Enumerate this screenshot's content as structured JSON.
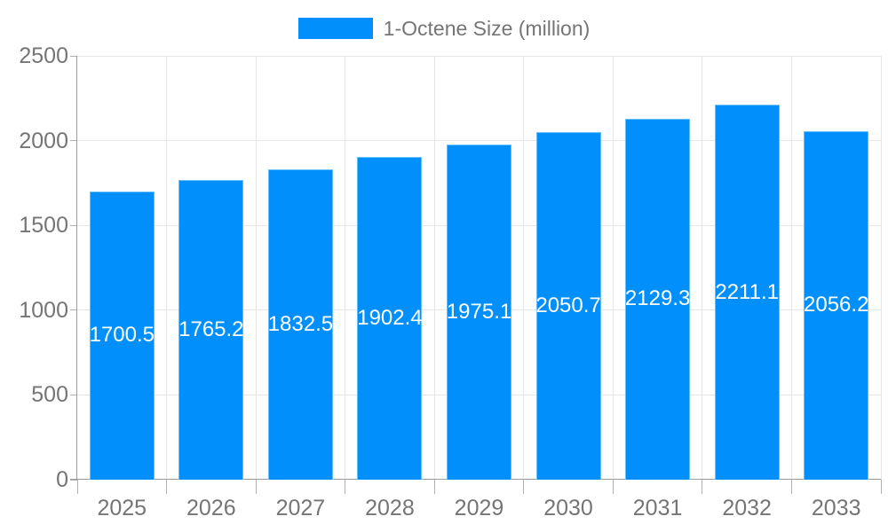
{
  "chart_data": {
    "type": "bar",
    "title": "",
    "categories": [
      "2025",
      "2026",
      "2027",
      "2028",
      "2029",
      "2030",
      "2031",
      "2032",
      "2033"
    ],
    "series": [
      {
        "name": "1-Octene Size (million)",
        "values": [
          1700.5,
          1765.2,
          1832.5,
          1902.4,
          1975.1,
          2050.7,
          2129.3,
          2211.1,
          2056.2
        ]
      }
    ],
    "value_labels": [
      "1700.5",
      "1765.2",
      "1832.5",
      "1902.4",
      "1975.1",
      "2050.7",
      "2129.3",
      "2211.1",
      "2056.2"
    ],
    "xlabel": "",
    "ylabel": "",
    "ylim": [
      0,
      2500
    ],
    "yticks": [
      0,
      500,
      1000,
      1500,
      2000,
      2500
    ],
    "ytick_labels": [
      "0",
      "500",
      "1000",
      "1500",
      "2000",
      "2500"
    ],
    "grid": true,
    "legend_position": "top"
  },
  "colors": {
    "bar": "#008ffb",
    "bar_edge": "#66c0fd",
    "grid": "#e6e6e6",
    "axis": "#9b9b9b",
    "tick": "#b0b0b0",
    "label_text": "#757575",
    "value_label_text": "#ffffff",
    "background": "#ffffff"
  }
}
